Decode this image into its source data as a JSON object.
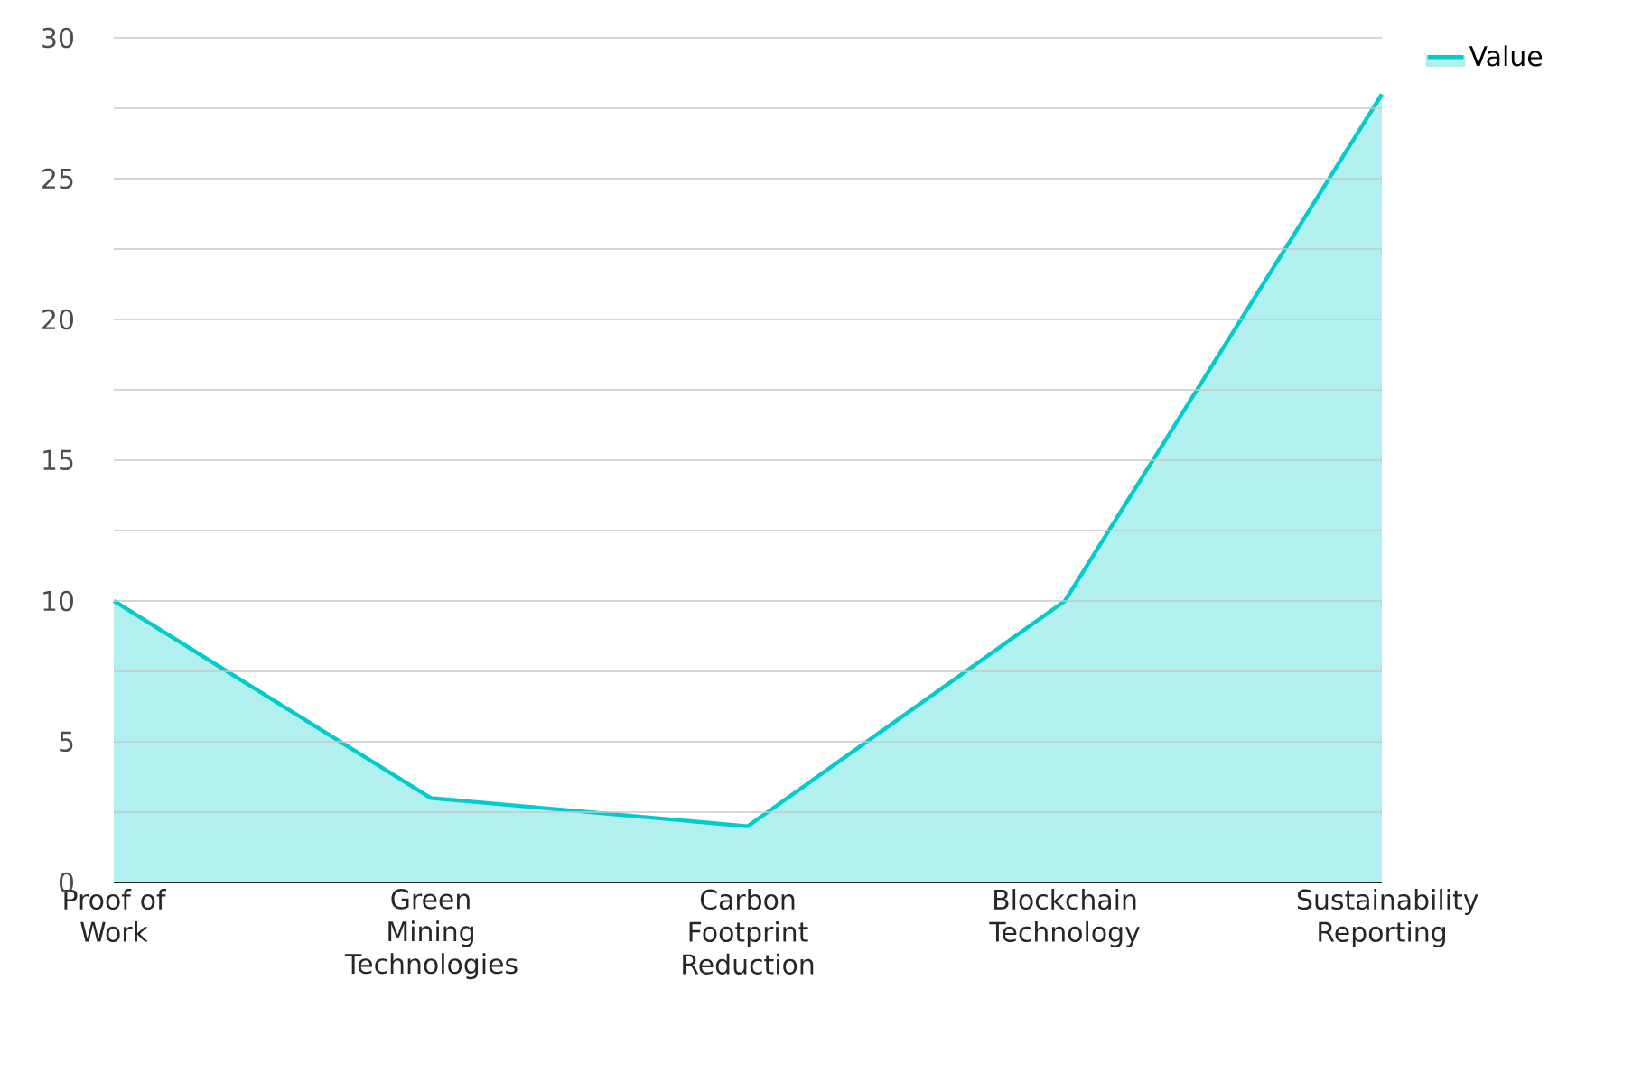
{
  "chart_data": {
    "type": "area",
    "categories": [
      "Proof of Work",
      "Green Mining Technologies",
      "Carbon Footprint Reduction",
      "Blockchain Technology",
      "Sustainability Reporting"
    ],
    "series": [
      {
        "name": "Value",
        "color": "#00cccc",
        "values": [
          10,
          3,
          2,
          10,
          28
        ]
      }
    ],
    "ylim": [
      0,
      30
    ],
    "yticks": [
      0,
      {
        "value": 2.5,
        "label": null
      },
      5,
      {
        "value": 7.5,
        "label": null
      },
      10,
      {
        "value": 12.5,
        "label": null
      },
      15,
      {
        "value": 17.5,
        "label": null
      },
      20,
      {
        "value": 22.5,
        "label": null
      },
      25,
      {
        "value": 27.5,
        "label": null
      },
      30
    ],
    "grid": "y",
    "legend": "top right"
  }
}
